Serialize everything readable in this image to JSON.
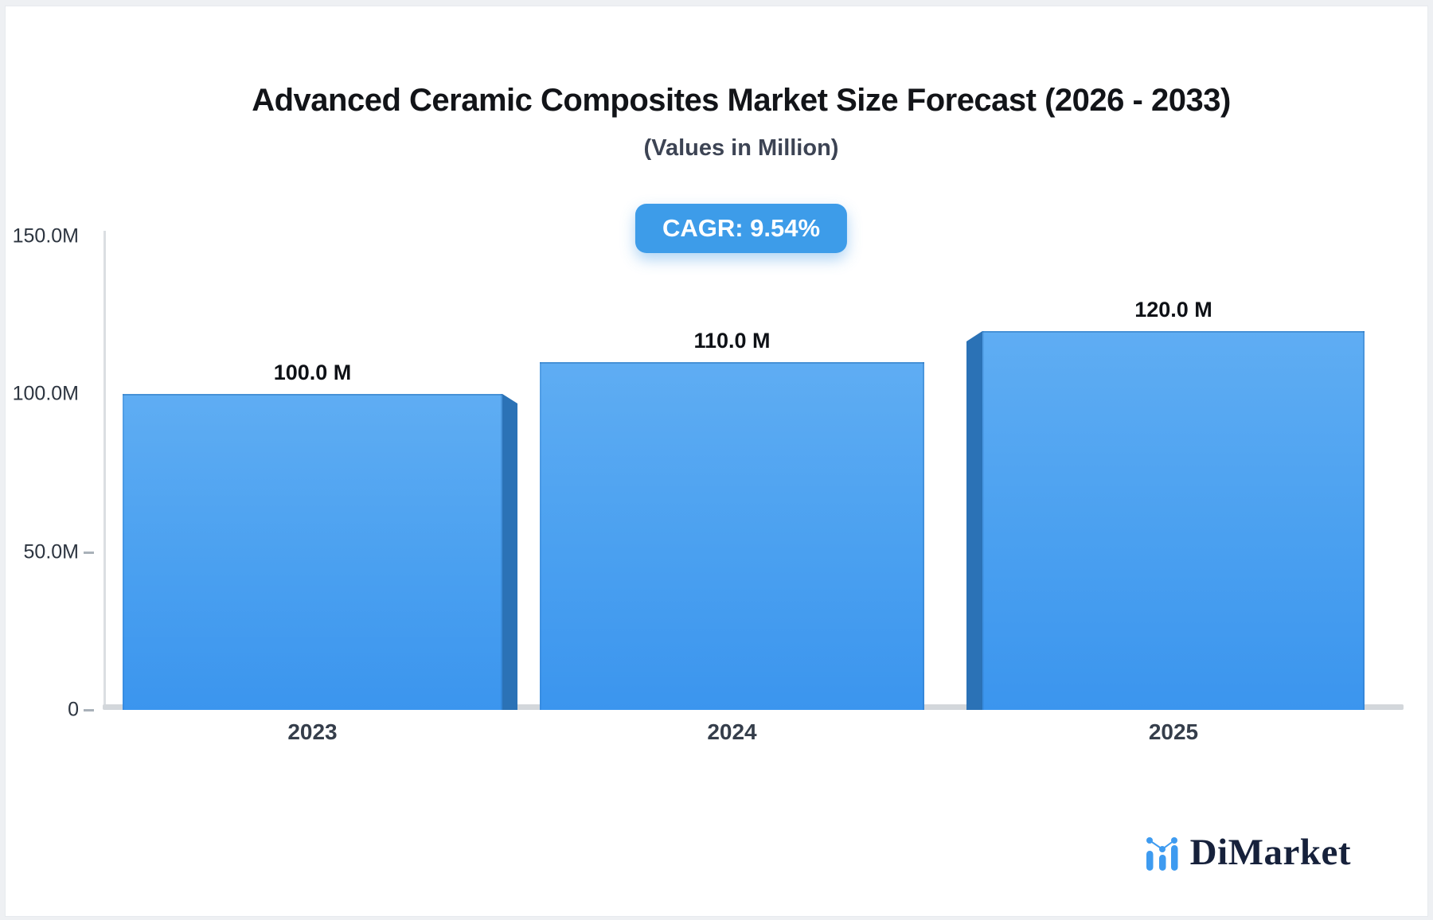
{
  "header": {
    "title": "Advanced Ceramic Composites Market Size Forecast (2026 - 2033)",
    "subtitle": "(Values in Million)"
  },
  "badge": {
    "label": "CAGR: 9.54%"
  },
  "brand": {
    "name": "DiMarket",
    "icon": "bar-line-chart-icon"
  },
  "colors": {
    "accent_blue": "#3d9ce9",
    "bar_top": "#5fadf3",
    "bar_bottom": "#3b95ee",
    "bar_side_shade": "#2b72b6",
    "logo_blue": "#3e9bf0",
    "logo_navy": "#16213b"
  },
  "chart_data": {
    "type": "bar",
    "title": "Advanced Ceramic Composites Market Size Forecast (2026 - 2033)",
    "subtitle": "(Values in Million)",
    "unit": "Million",
    "cagr_pct": 9.54,
    "categories": [
      "2023",
      "2024",
      "2025"
    ],
    "values": [
      100.0,
      110.0,
      120.0
    ],
    "value_labels": [
      "100.0 M",
      "110.0 M",
      "120.0 M"
    ],
    "y_ticks": [
      {
        "label": "150.0M",
        "value": 150
      },
      {
        "label": "100.0M",
        "value": 100
      },
      {
        "label": "50.0M",
        "value": 50
      },
      {
        "label": "0",
        "value": 0
      }
    ],
    "ylim": [
      0,
      150
    ],
    "grid": false,
    "legend": false
  }
}
